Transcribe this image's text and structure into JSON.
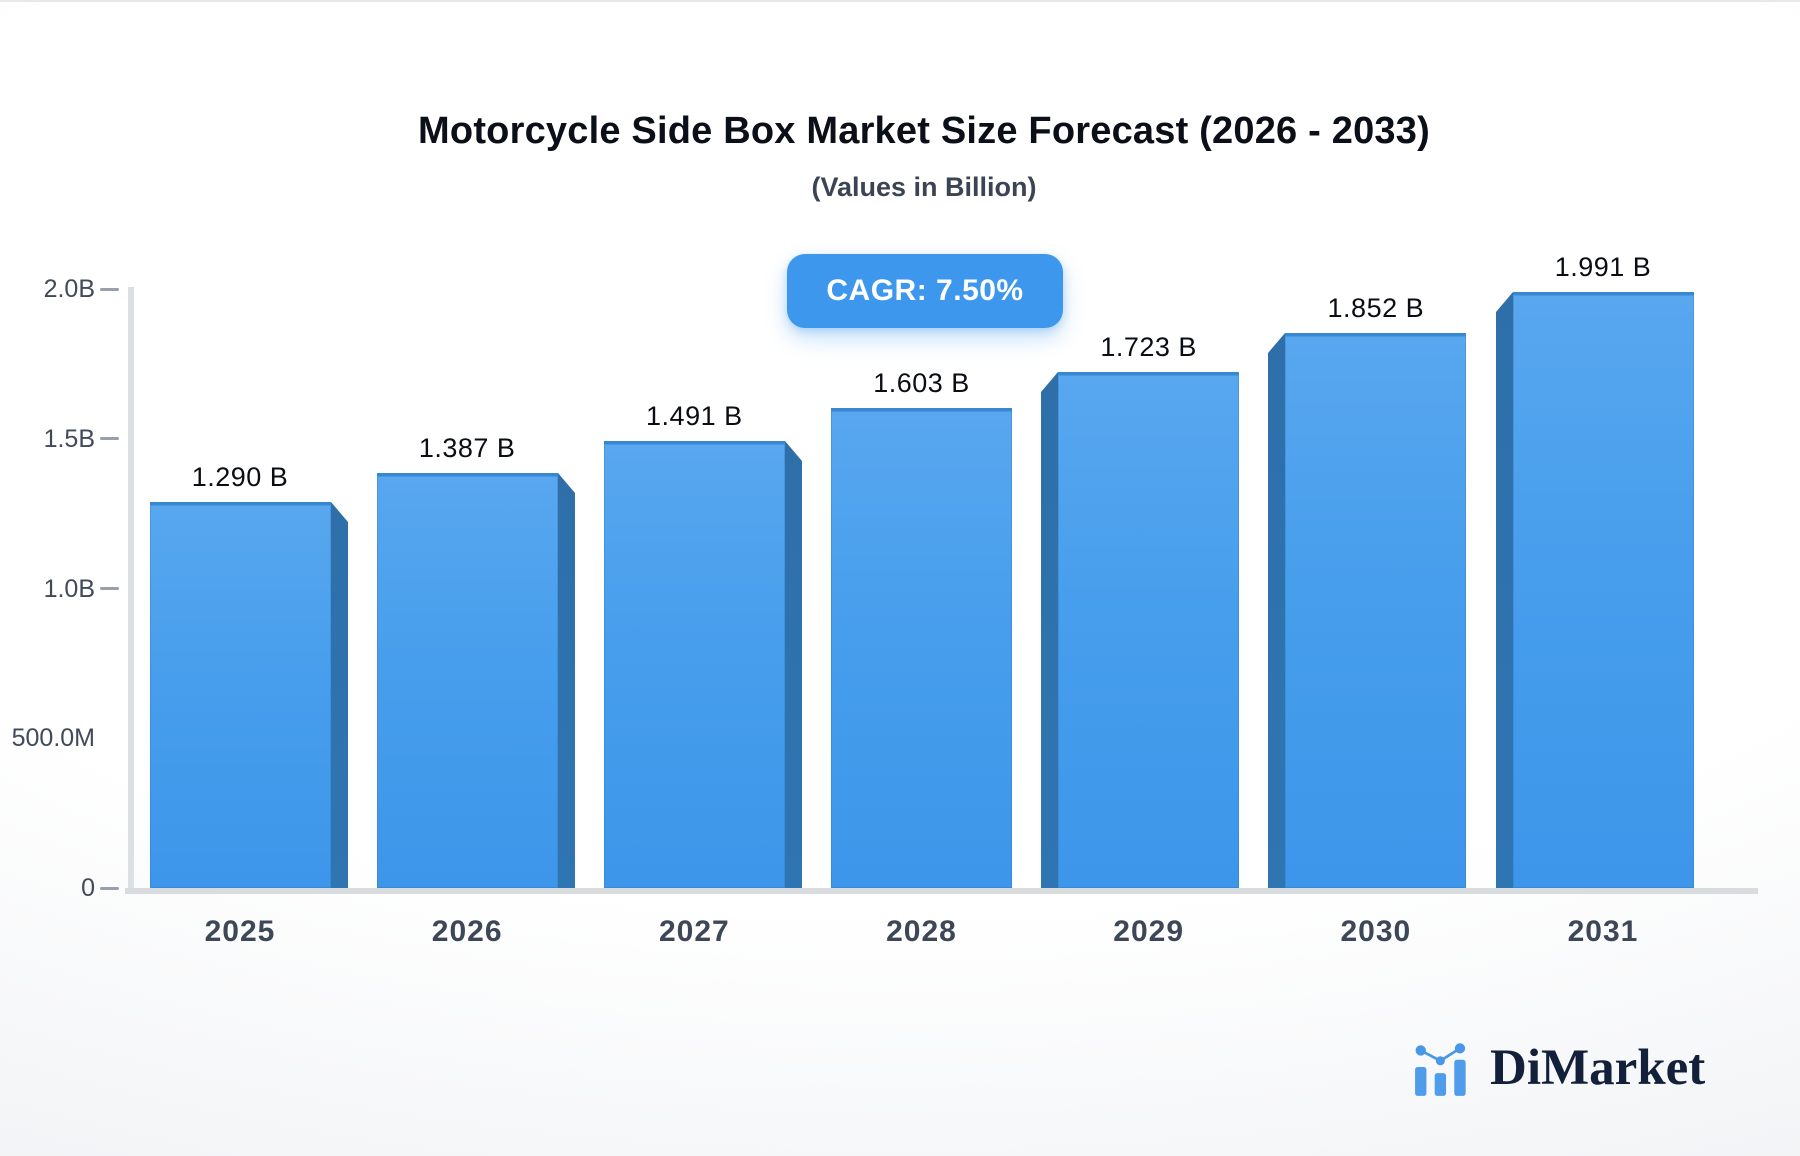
{
  "title": "Motorcycle Side Box Market Size Forecast (2026 - 2033)",
  "subtitle": "(Values in Billion)",
  "badge": {
    "label": "CAGR: 7.50%",
    "bg_color": "#3c97ed",
    "text_color": "#ffffff"
  },
  "brand": {
    "name": "DiMarket"
  },
  "chart_data": {
    "type": "bar",
    "title": "Motorcycle Side Box Market Size Forecast (2026 - 2033)",
    "subtitle": "(Values in Billion)",
    "annotation": "CAGR: 7.50%",
    "categories": [
      "2025",
      "2026",
      "2027",
      "2028",
      "2029",
      "2030",
      "2031"
    ],
    "values_billions": [
      1.29,
      1.387,
      1.491,
      1.603,
      1.723,
      1.852,
      1.991
    ],
    "value_labels": [
      "1.290 B",
      "1.387 B",
      "1.491 B",
      "1.603 B",
      "1.723 B",
      "1.852 B",
      "1.991 B"
    ],
    "xlabel": "",
    "ylabel": "",
    "ylim_billions": [
      0,
      2.0
    ],
    "y_ticks": [
      {
        "label": "2.0B",
        "value_billions": 2.0,
        "dash": true
      },
      {
        "label": "1.5B",
        "value_billions": 1.5,
        "dash": true
      },
      {
        "label": "1.0B",
        "value_billions": 1.0,
        "dash": true
      },
      {
        "label": "500.0M",
        "value_billions": 0.5,
        "dash": false
      },
      {
        "label": "0",
        "value_billions": 0.0,
        "dash": true
      }
    ],
    "grid": false,
    "legend": false,
    "colors": {
      "bar_face_top": "#58a7ef",
      "bar_face_bottom": "#3d96ea",
      "bar_side": "#2e73af",
      "axis_line": "#dcdfe3",
      "label_text": "#0a0e14",
      "tick_text": "#404a59"
    }
  }
}
